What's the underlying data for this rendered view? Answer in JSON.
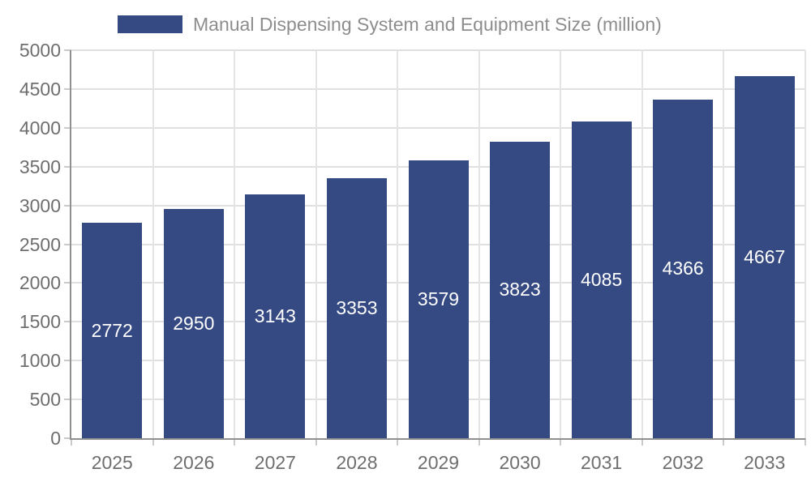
{
  "legend": {
    "label": "Manual Dispensing System and Equipment Size (million)"
  },
  "chart_data": {
    "type": "bar",
    "title": "Manual Dispensing System and Equipment Size (million)",
    "categories": [
      "2025",
      "2026",
      "2027",
      "2028",
      "2029",
      "2030",
      "2031",
      "2032",
      "2033"
    ],
    "values": [
      2772,
      2950,
      3143,
      3353,
      3579,
      3823,
      4085,
      4366,
      4667
    ],
    "xlabel": "",
    "ylabel": "",
    "ylim": [
      0,
      5000
    ],
    "ytick_step": 500,
    "grid": true,
    "legend_position": "top",
    "bar_color": "#354982",
    "bar_label_color": "#ffffff",
    "axis_color": "#909090",
    "gridline_color": "#e0e0e0",
    "tick_label_color": "#6e6e6e",
    "legend_text_color": "#8d8d8d"
  }
}
